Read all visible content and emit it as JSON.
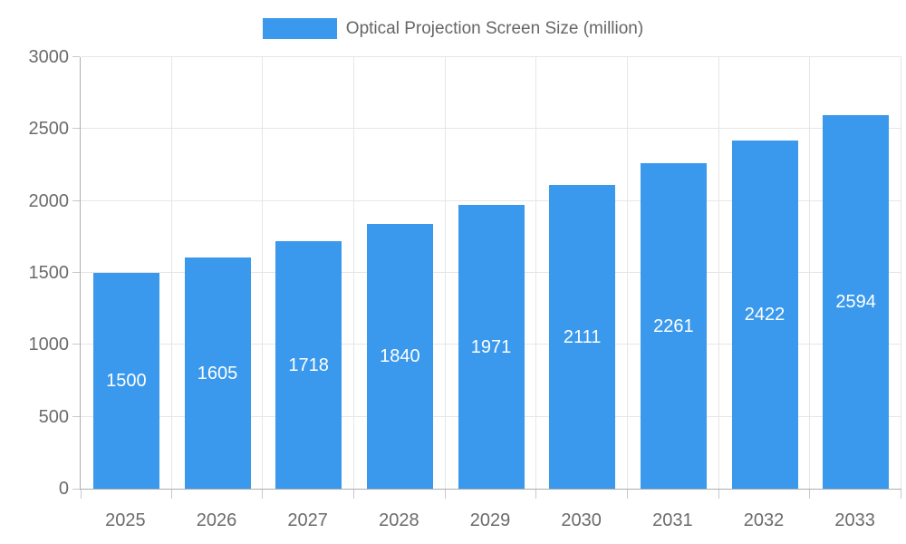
{
  "legend": {
    "label": "Optical Projection Screen Size (million)"
  },
  "colors": {
    "bar": "#3a99ec",
    "bar_label": "#ffffff",
    "gridline": "#e6e6e6",
    "axis_line": "#adadad",
    "tick": "#c9c9c9",
    "axis_text": "#6b6b6b",
    "legend_text": "#666666"
  },
  "chart_data": {
    "type": "bar",
    "title": "",
    "xlabel": "",
    "ylabel": "",
    "categories": [
      "2025",
      "2026",
      "2027",
      "2028",
      "2029",
      "2030",
      "2031",
      "2032",
      "2033"
    ],
    "series": [
      {
        "name": "Optical Projection Screen Size (million)",
        "values": [
          1500,
          1605,
          1718,
          1840,
          1971,
          2111,
          2261,
          2422,
          2594
        ]
      }
    ],
    "yticks": [
      0,
      500,
      1000,
      1500,
      2000,
      2500,
      3000
    ],
    "ylim": [
      0,
      3000
    ],
    "grid": true,
    "legend_position": "top",
    "bar_labels_shown": true,
    "bar_label_position": "center"
  }
}
